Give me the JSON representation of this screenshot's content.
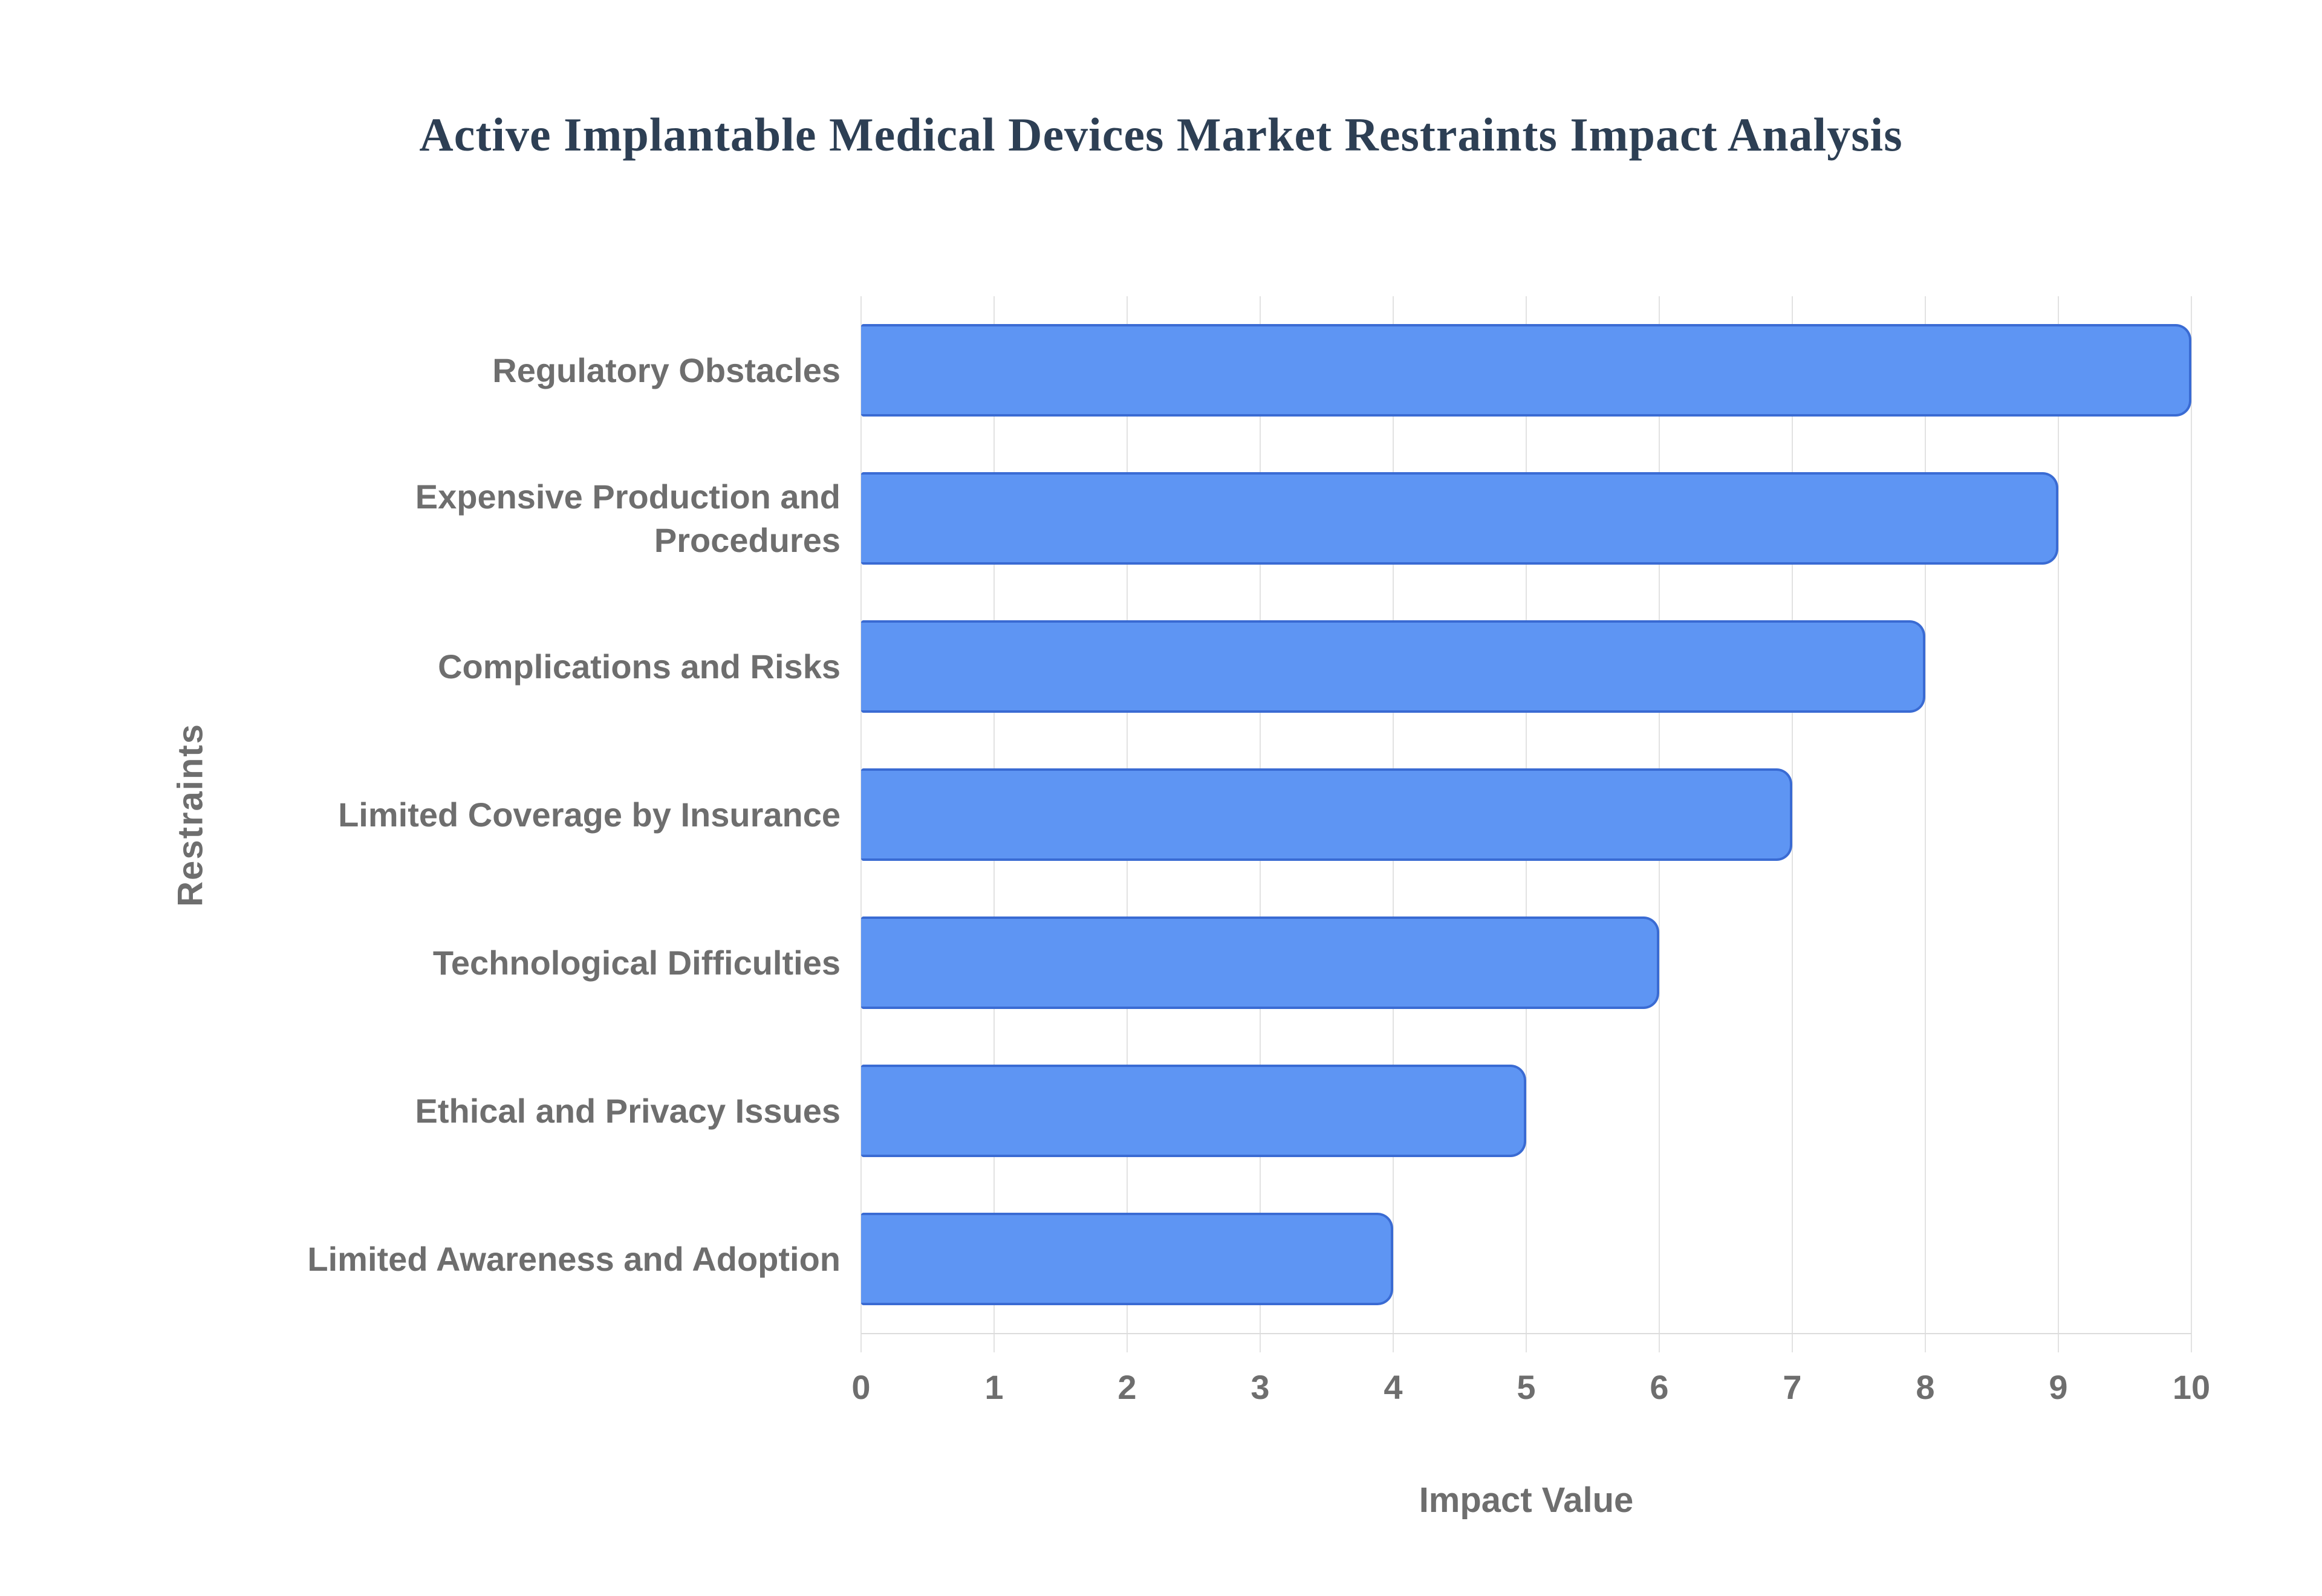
{
  "chart_data": {
    "type": "bar",
    "orientation": "horizontal",
    "title": "Active Implantable Medical Devices Market Restraints Impact Analysis",
    "xlabel": "Impact Value",
    "ylabel": "Restraints",
    "categories": [
      "Regulatory Obstacles",
      "Expensive Production and Procedures",
      "Complications and Risks",
      "Limited Coverage by Insurance",
      "Technological Difficulties",
      "Ethical and Privacy Issues",
      "Limited Awareness and Adoption"
    ],
    "values": [
      10,
      9,
      8,
      7,
      6,
      5,
      4
    ],
    "xlim": [
      0,
      10
    ],
    "xticks": [
      0,
      1,
      2,
      3,
      4,
      5,
      6,
      7,
      8,
      9,
      10
    ],
    "grid": "vertical-only",
    "legend": "none",
    "colors": {
      "bar_fill": "#5e95f3",
      "bar_border": "#3a6bd3",
      "gridline": "#e2e2e2",
      "axis_line": "#dcdcdc",
      "title_text": "#2d3f54",
      "label_text": "#6e6e6e",
      "background": "#ffffff"
    }
  }
}
